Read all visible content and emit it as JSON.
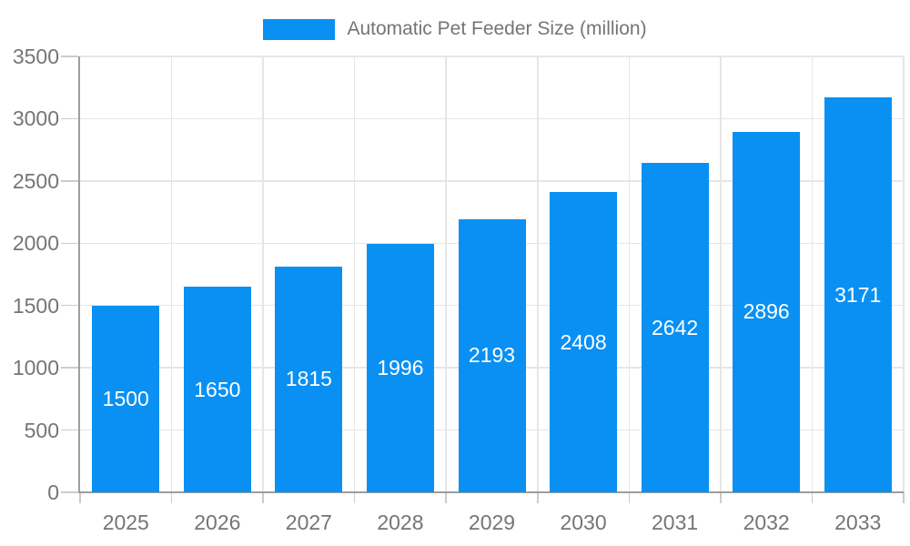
{
  "legend": {
    "label": "Automatic Pet Feeder Size (million)"
  },
  "colors": {
    "bar": "#0a90f2",
    "bar_label": "#ffffff",
    "axis_text": "#757575",
    "grid_line": "#e6e6e6",
    "axis_line": "#9e9e9e",
    "tick_line": "#cccccc",
    "background": "#ffffff"
  },
  "chart_data": {
    "type": "bar",
    "title": "Automatic Pet Feeder Size (million)",
    "series": [
      {
        "name": "Automatic Pet Feeder Size (million)",
        "values": [
          1500,
          1650,
          1815,
          1996,
          2193,
          2408,
          2642,
          2896,
          3171
        ]
      }
    ],
    "categories": [
      "2025",
      "2026",
      "2027",
      "2028",
      "2029",
      "2030",
      "2031",
      "2032",
      "2033"
    ],
    "xlabel": "",
    "ylabel": "",
    "ylim": [
      0,
      3500
    ],
    "yticks": [
      0,
      500,
      1000,
      1500,
      2000,
      2500,
      3000,
      3500
    ],
    "grid": true,
    "legend_position": "top-center",
    "value_labels_position": "inside-center"
  }
}
